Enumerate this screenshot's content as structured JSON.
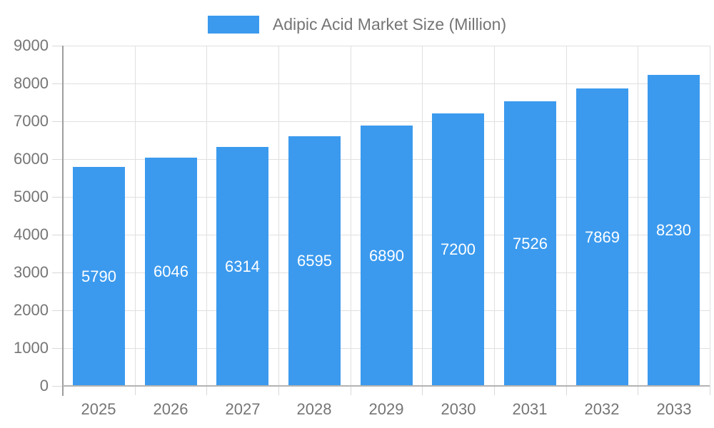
{
  "chart_data": {
    "type": "bar",
    "legend_entries": [
      "Adipic Acid Market Size (Million)"
    ],
    "legend_position": "top",
    "categories": [
      "2025",
      "2026",
      "2027",
      "2028",
      "2029",
      "2030",
      "2031",
      "2032",
      "2033"
    ],
    "series": [
      {
        "name": "Adipic Acid Market Size (Million)",
        "values": [
          5790,
          6046,
          6314,
          6595,
          6890,
          7200,
          7526,
          7869,
          8230
        ]
      }
    ],
    "data_labels": [
      5790,
      6046,
      6314,
      6595,
      6890,
      7200,
      7526,
      7869,
      8230
    ],
    "xlabel": "",
    "ylabel": "",
    "ylim": [
      0,
      9000
    ],
    "ytick_step": 1000,
    "ytick_labels": [
      "0",
      "1000",
      "2000",
      "3000",
      "4000",
      "5000",
      "6000",
      "7000",
      "8000",
      "9000"
    ],
    "grid": true,
    "colors": {
      "bar": "#3b9aee",
      "axis_text": "#757575",
      "value_label": "#ffffff",
      "gridline": "#e0e0e0",
      "tick": "#d9d9d9",
      "axis_line_left": "#9e9e9e",
      "axis_line_bottom": "#b3b3b3",
      "background": "#ffffff"
    }
  }
}
